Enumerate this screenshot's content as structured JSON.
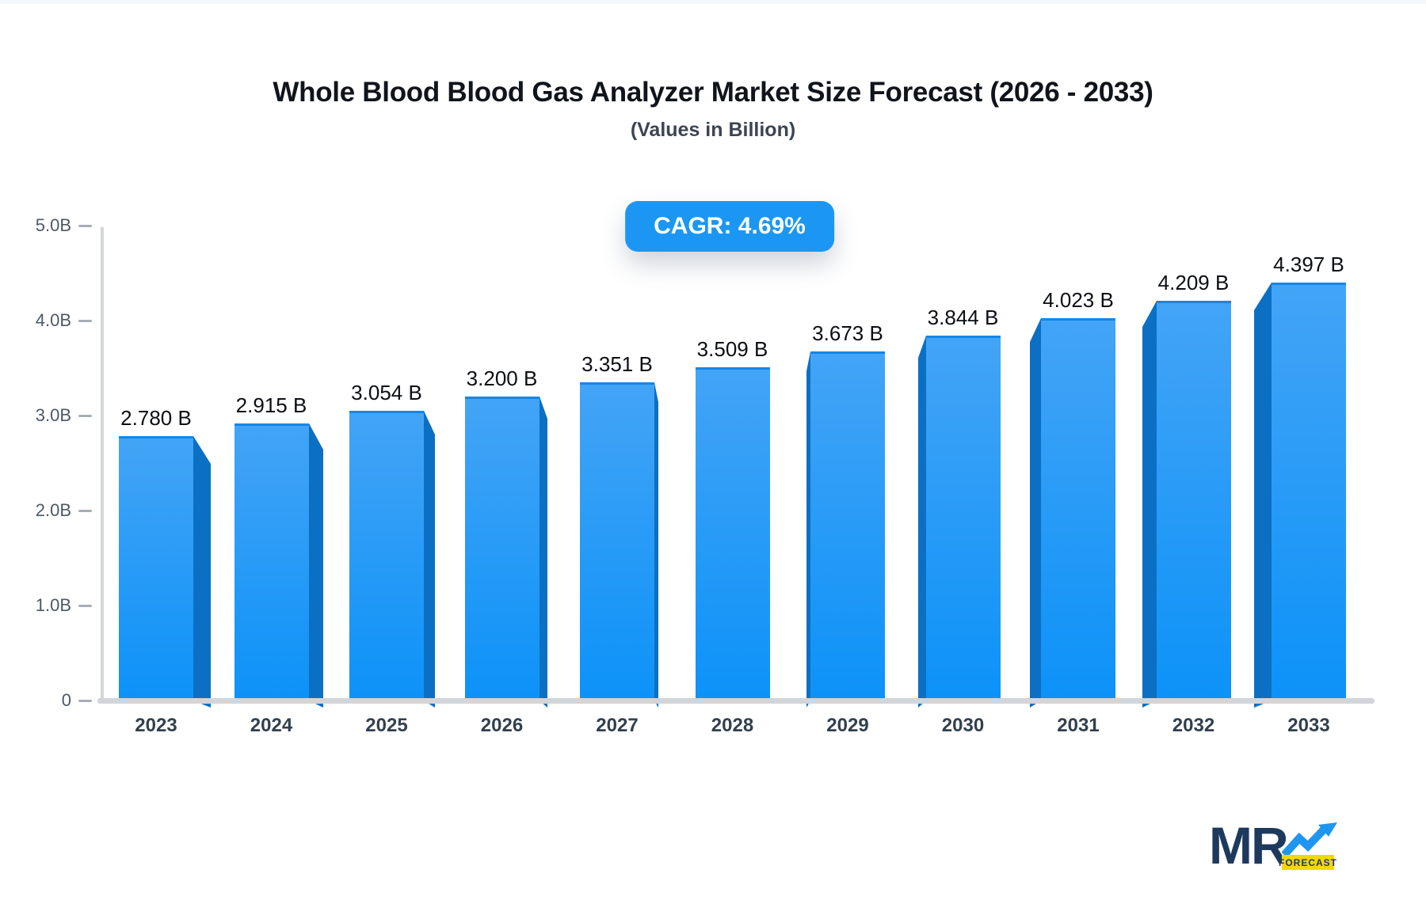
{
  "header": {
    "title": "Whole Blood Blood Gas Analyzer Market Size Forecast (2026 - 2033)",
    "subtitle": "(Values in Billion)"
  },
  "cagr_badge": {
    "label": "CAGR: 4.69%"
  },
  "chart_data": {
    "type": "bar",
    "title": "Whole Blood Blood Gas Analyzer Market Size Forecast (2026 - 2033)",
    "subtitle": "(Values in Billion)",
    "categories": [
      "2023",
      "2024",
      "2025",
      "2026",
      "2027",
      "2028",
      "2029",
      "2030",
      "2031",
      "2032",
      "2033"
    ],
    "values": [
      2.78,
      2.915,
      3.054,
      3.2,
      3.351,
      3.509,
      3.673,
      3.844,
      4.023,
      4.209,
      4.397
    ],
    "value_labels": [
      "2.780 B",
      "2.915 B",
      "3.054 B",
      "3.200 B",
      "3.351 B",
      "3.509 B",
      "3.673 B",
      "3.844 B",
      "4.023 B",
      "4.209 B",
      "4.397 B"
    ],
    "unit": "Billion",
    "xlabel": "",
    "ylabel": "",
    "ylim": [
      0,
      5
    ],
    "ytick_values": [
      5,
      4,
      3,
      2,
      1,
      0
    ],
    "ytick_labels": [
      "5.0B",
      "4.0B",
      "3.0B",
      "2.0B",
      "1.0B",
      "0"
    ],
    "grid": false,
    "legend": "none",
    "cagr": "CAGR: 4.69%"
  },
  "logo": {
    "mr": "MR",
    "forecast": "FORECAST",
    "arrow_icon": "trend-up-arrow"
  },
  "colors": {
    "badge_bg": "#1b97f3",
    "badge_text": "#ffffff",
    "bar_top": "#43a4f6",
    "bar_bottom": "#0c92f8",
    "bar_side": "#0b70c3",
    "title": "#10141b",
    "subtitle": "#3c4454",
    "value_label": "#0b0e13",
    "y_label": "#4e5866",
    "x_label": "#32404e",
    "tick_dash": "#a7adb6",
    "axis_line": "#d3d6db",
    "baseline": "#d2d5d9",
    "logo_navy": "#1d3a5d",
    "logo_blue": "#1e96f0",
    "logo_yellow": "#f2d70c"
  }
}
